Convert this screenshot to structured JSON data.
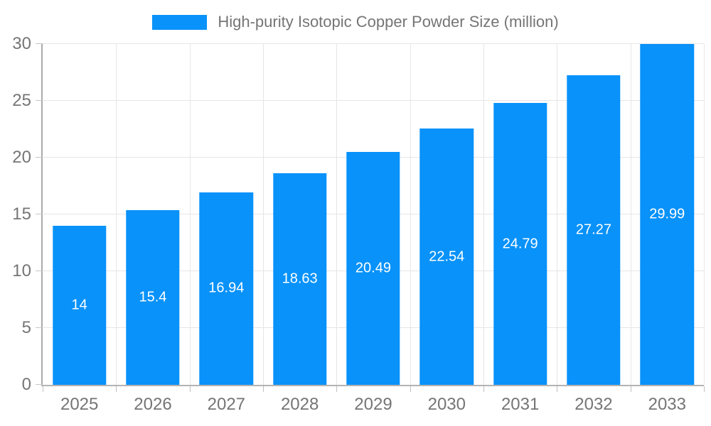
{
  "legend": {
    "label": "High-purity Isotopic Copper Powder Size (million)",
    "swatch_color": "#0892fa"
  },
  "chart_data": {
    "type": "bar",
    "title": "High-purity Isotopic Copper Powder Size (million)",
    "categories": [
      "2025",
      "2026",
      "2027",
      "2028",
      "2029",
      "2030",
      "2031",
      "2032",
      "2033"
    ],
    "values": [
      14,
      15.4,
      16.94,
      18.63,
      20.49,
      22.54,
      24.79,
      27.27,
      29.99
    ],
    "value_labels": [
      "14",
      "15.4",
      "16.94",
      "18.63",
      "20.49",
      "22.54",
      "24.79",
      "27.27",
      "29.99"
    ],
    "xlabel": "",
    "ylabel": "",
    "ylim": [
      0,
      30
    ],
    "yticks": [
      0,
      5,
      10,
      15,
      20,
      25,
      30
    ],
    "grid": true,
    "legend_position": "top",
    "bar_color": "#0892fa",
    "bar_label_color": "#ffffff",
    "axis_text_color": "#757575",
    "gridline_color": "#e6e6e6",
    "axis_line_color": "#b3b3b3"
  }
}
